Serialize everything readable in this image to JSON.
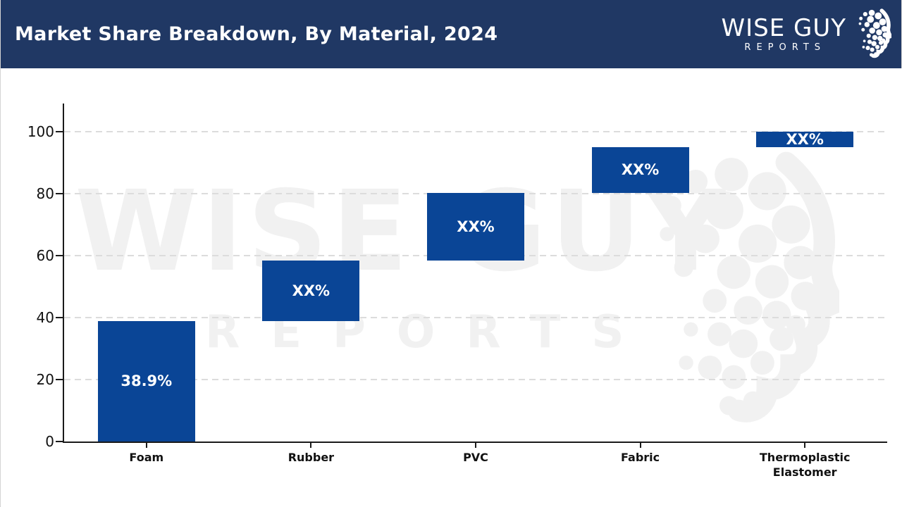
{
  "header": {
    "title": "Market Share Breakdown, By Material, 2024",
    "logo": {
      "line1": "WISE GUY",
      "line2": "REPORTS"
    }
  },
  "watermark": {
    "line1": "WISE GUY",
    "line2": "REPORTS"
  },
  "chart_data": {
    "type": "bar",
    "subtype": "waterfall",
    "title": "Market Share Breakdown, By Material, 2024",
    "categories": [
      "Foam",
      "Rubber",
      "PVC",
      "Fabric",
      "Thermoplastic Elastomer"
    ],
    "bars": [
      {
        "category": "Foam",
        "label": "38.9%",
        "start": 0,
        "end": 38.9
      },
      {
        "category": "Rubber",
        "label": "XX%",
        "start": 38.9,
        "end": 58.5
      },
      {
        "category": "PVC",
        "label": "XX%",
        "start": 58.5,
        "end": 80.3
      },
      {
        "category": "Fabric",
        "label": "XX%",
        "start": 80.3,
        "end": 95.0
      },
      {
        "category": "Thermoplastic Elastomer",
        "label": "XX%",
        "start": 95.0,
        "end": 100.0
      }
    ],
    "yticks": [
      0,
      20,
      40,
      60,
      80,
      100
    ],
    "ylim": [
      0,
      107
    ],
    "xlabel": "",
    "ylabel": "",
    "grid": "horizontal-dashed",
    "legend": "none",
    "colors": {
      "bar": "#0a4596",
      "bar_label": "#ffffff",
      "grid": "#dcdcdc",
      "axis": "#1a1a1a",
      "tick_label": "#111111",
      "header_bg": "#203864",
      "watermark": "#f1f1f1"
    }
  }
}
